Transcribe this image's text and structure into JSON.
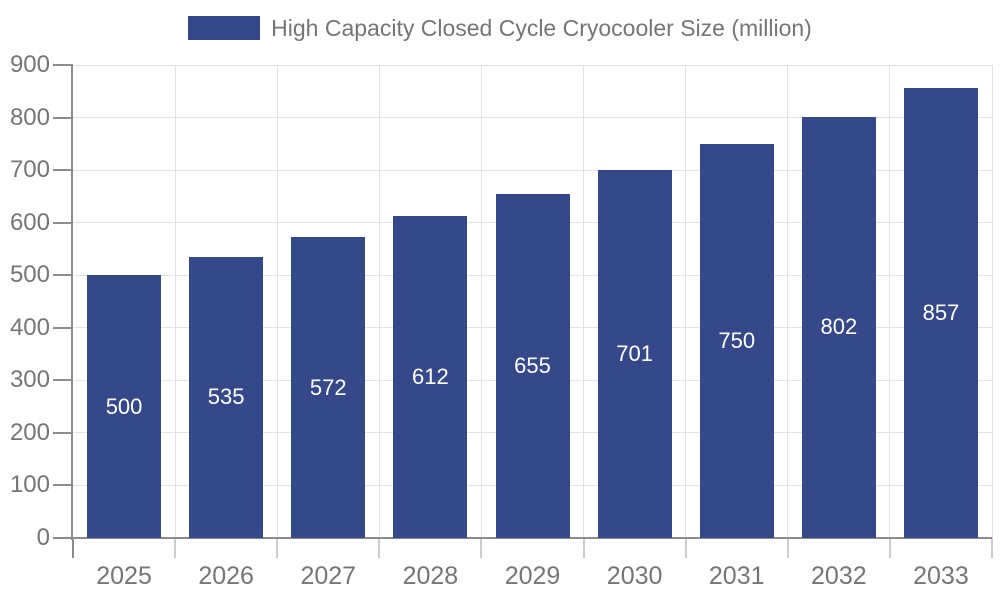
{
  "chart_data": {
    "type": "bar",
    "title": "High Capacity Closed Cycle Cryocooler Size (million)",
    "series_name": "High Capacity Closed Cycle Cryocooler Size (million)",
    "categories": [
      "2025",
      "2026",
      "2027",
      "2028",
      "2029",
      "2030",
      "2031",
      "2032",
      "2033"
    ],
    "values": [
      500,
      535,
      572,
      612,
      655,
      701,
      750,
      802,
      857
    ],
    "value_labels": [
      "500",
      "535",
      "572",
      "612",
      "655",
      "701",
      "750",
      "802",
      "857"
    ],
    "xlabel": "",
    "ylabel": "",
    "ylim": [
      0,
      900
    ],
    "yticks": [
      0,
      100,
      200,
      300,
      400,
      500,
      600,
      700,
      800,
      900
    ],
    "grid": true,
    "legend_position": "top",
    "colors": {
      "bar": "#35498a",
      "value_label": "#ffffff",
      "axis_text": "#757575",
      "legend_text": "#757575",
      "gridline": "#e3e3e3",
      "axis_line": "#8c8c8c",
      "x_tick": "#cccccc",
      "background": "#ffffff"
    }
  }
}
